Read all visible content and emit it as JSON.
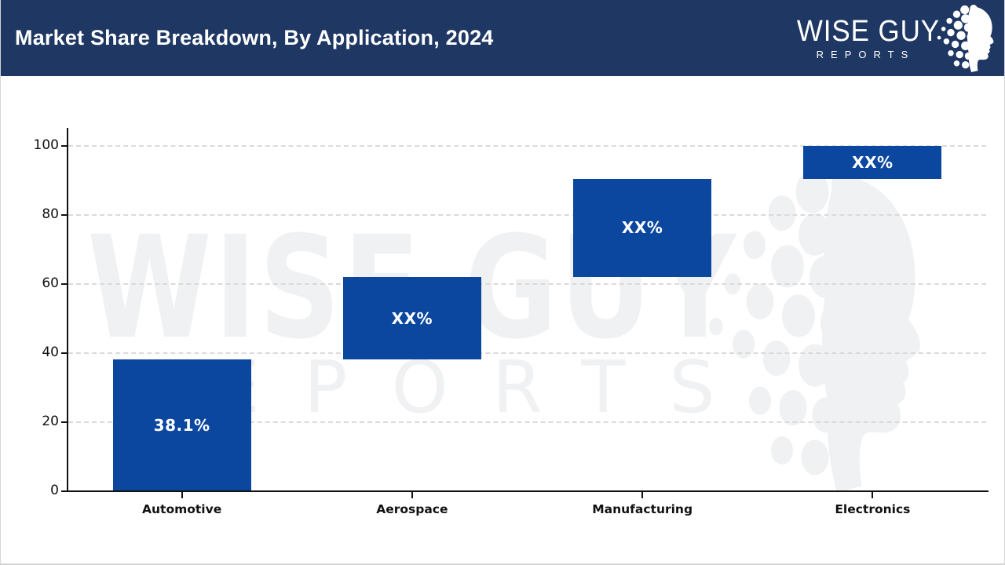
{
  "header": {
    "title": "Market Share Breakdown, By Application, 2024",
    "logo": {
      "line1": "WISE GUY",
      "line2": "REPORTS"
    }
  },
  "watermark": {
    "line1": "WISE GUY",
    "line2": "REPORTS"
  },
  "colors": {
    "header_bg": "#1f3763",
    "bar": "#0b479f",
    "grid": "#dadada",
    "axis": "#111111",
    "bar_label": "#ffffff",
    "watermark": "#f0f1f3",
    "page_border": "#d5d5d5"
  },
  "chart_data": {
    "type": "bar",
    "variant": "waterfall",
    "title": "Market Share Breakdown, By Application, 2024",
    "categories": [
      "Automotive",
      "Aerospace",
      "Manufacturing",
      "Electronics"
    ],
    "segments": [
      {
        "category": "Automotive",
        "start": 0,
        "end": 38.1,
        "label": "38.1%"
      },
      {
        "category": "Aerospace",
        "start": 38.1,
        "end": 62,
        "label": "XX%"
      },
      {
        "category": "Manufacturing",
        "start": 62,
        "end": 90.5,
        "label": "XX%"
      },
      {
        "category": "Electronics",
        "start": 90.5,
        "end": 100,
        "label": "XX%"
      }
    ],
    "yticks": [
      0,
      20,
      40,
      60,
      80,
      100
    ],
    "ylim": [
      0,
      105.2
    ],
    "xlabel": "",
    "ylabel": "",
    "grid": "horizontal-dashed",
    "legend": "none",
    "bar_color": "#0b479f",
    "label_color": "#ffffff"
  }
}
